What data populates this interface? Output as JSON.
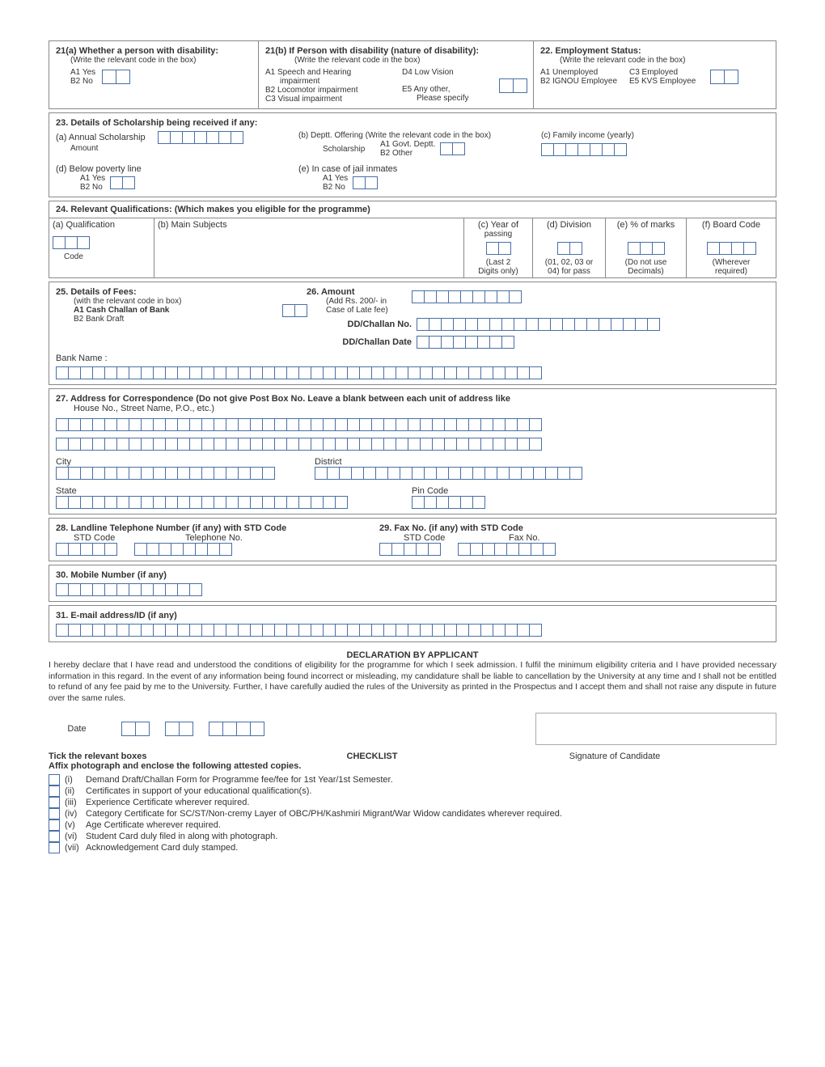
{
  "q21a": {
    "title": "21(a)  Whether a person with disability:",
    "sub": "(Write the relevant code in the box)",
    "a1": "A1 Yes",
    "b2": "B2 No"
  },
  "q21b": {
    "title": "21(b)  If Person with disability (nature of disability):",
    "sub": "(Write the relevant code in the box)",
    "a1": "A1  Speech and Hearing",
    "a1b": "impairment",
    "b2": "B2  Locomotor impairment",
    "c3": "C3  Visual impairment",
    "d4": "D4  Low Vision",
    "e5": "E5  Any other,",
    "e5b": "Please specify"
  },
  "q22": {
    "title": "22.  Employment Status:",
    "sub": "(Write the relevant code in the box)",
    "a1": "A1 Unemployed",
    "b2": "B2 IGNOU Employee",
    "c3": "C3  Employed",
    "e5": "E5  KVS Employee"
  },
  "q23": {
    "title": "23.  Details of Scholarship being received if any:",
    "a": "(a) Annual Scholarship",
    "amount": "Amount",
    "b": "(b)    Deptt. Offering (Write the relevant code in the box)",
    "b_sub": "Scholarship",
    "b_a1": "A1   Govt. Deptt.",
    "b_b2": "B2   Other",
    "c": "(c)    Family income (yearly)",
    "d": "(d)    Below poverty line",
    "d_a1": "A1 Yes",
    "d_b2": "B2 No",
    "e": "(e)    In case of jail inmates",
    "e_a1": "A1 Yes",
    "e_b2": "B2 No"
  },
  "q24": {
    "title": "24.  Relevant Qualifications: (Which makes you eligible for the programme)",
    "col_a": "(a) Qualification",
    "code": "Code",
    "col_b": "(b) Main Subjects",
    "col_c": "(c) Year of",
    "col_c2": "passing",
    "col_c_sub1": "(Last 2",
    "col_c_sub2": "Digits only)",
    "col_d": "(d) Division",
    "col_d_sub1": "(01, 02, 03 or",
    "col_d_sub2": "04) for pass",
    "col_e": "(e) % of marks",
    "col_e_sub1": "(Do not use",
    "col_e_sub2": "Decimals)",
    "col_f": "(f) Board Code",
    "col_f_sub1": "(Wherever",
    "col_f_sub2": "required)"
  },
  "q25": {
    "title": "25.  Details of Fees:",
    "sub": "(with the relevant code in box)",
    "a1": "A1 Cash Challan of Bank",
    "b2": "B2 Bank Draft",
    "bank": "Bank Name :"
  },
  "q26": {
    "title": "26.  Amount",
    "sub1": "(Add Rs. 200/- in",
    "sub2": "Case of Late fee)",
    "dd_no": "DD/Challan No.",
    "dd_date": "DD/Challan Date"
  },
  "q27": {
    "title": "27.  Address for Correspondence (Do not give Post Box No. Leave a blank between each unit of address like",
    "sub": "House No., Street Name, P.O., etc.)",
    "city": "City",
    "district": "District",
    "state": "State",
    "pin": "Pin Code"
  },
  "q28": {
    "title": "28.  Landline Telephone Number (if any) with STD Code",
    "std": "STD Code",
    "tel": "Telephone No."
  },
  "q29": {
    "title": "29. Fax No. (if any) with STD Code",
    "std": "STD Code",
    "fax": "Fax No."
  },
  "q30": {
    "title": "30.  Mobile Number (if any)"
  },
  "q31": {
    "title": "31.  E-mail address/ID (if any)"
  },
  "decl": {
    "title": "DECLARATION BY APPLICANT",
    "text": "I hereby declare that I have read and understood the conditions of eligibility for the programme for which I seek admission. I fulfil the minimum eligibility criteria and I have provided necessary information in this regard. In the event of any information being found incorrect or misleading, my candidature shall be liable to cancellation by the University at any time and I shall not be entitled to refund of any fee paid by me to the University. Further, I have carefully audied the rules of the University as printed in the Prospectus and I accept them and shall not raise any dispute in future over the same rules.",
    "date": "Date",
    "sig": "Signature of Candidate"
  },
  "checklist": {
    "tick": "Tick the relevant boxes",
    "title": "CHECKLIST",
    "affix": "Affix photograph and enclose the following attested copies.",
    "i": "(i)",
    "i_t": "Demand Draft/Challan Form for Programme fee/fee for 1st Year/1st Semester.",
    "ii": "(ii)",
    "ii_t": "Certificates in support of your educational qualification(s).",
    "iii": "(iii)",
    "iii_t": "Experience Certificate wherever required.",
    "iv": "(iv)",
    "iv_t": "Category Certificate for SC/ST/Non-cremy Layer of OBC/PH/Kashmiri Migrant/War Widow candidates wherever required.",
    "v": "(v)",
    "v_t": "Age Certificate wherever required.",
    "vi": "(vi)",
    "vi_t": "Student Card duly filed in along with photograph.",
    "vii": "(vii)",
    "vii_t": "Acknowledgement Card duly stamped."
  }
}
